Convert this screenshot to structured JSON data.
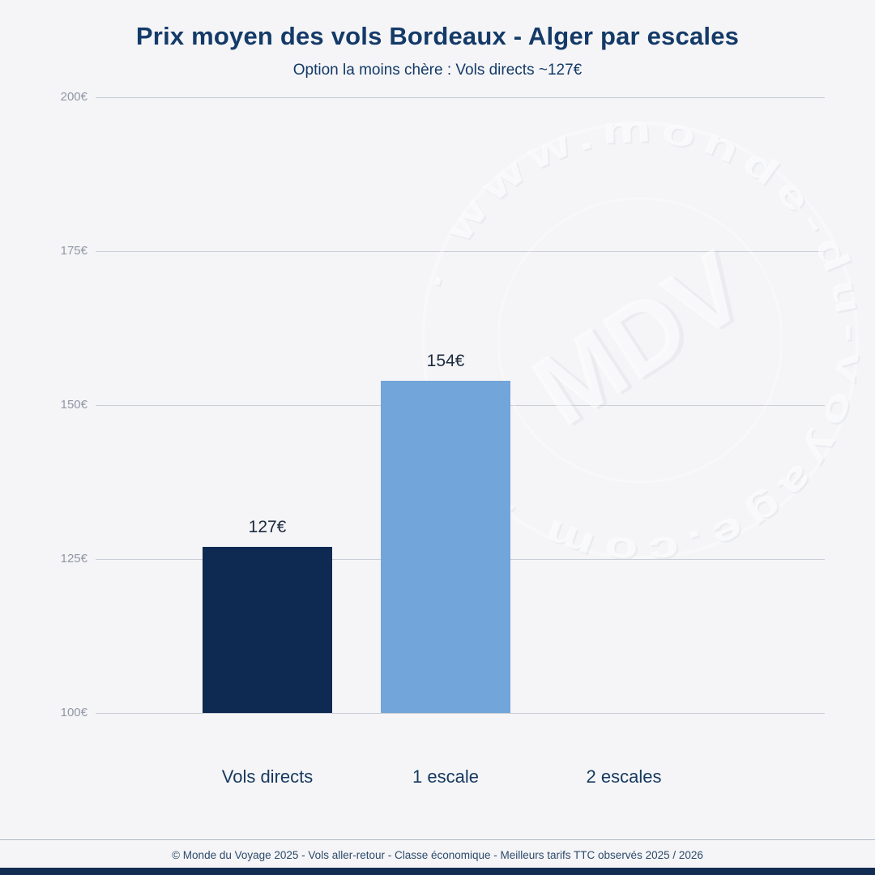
{
  "header": {
    "title": "Prix moyen des vols Bordeaux - Alger par escales",
    "subtitle": "Option la moins chère : Vols directs ~127€"
  },
  "chart_data": {
    "type": "bar",
    "title": "Prix moyen des vols Bordeaux - Alger par escales",
    "subtitle": "Option la moins chère : Vols directs ~127€",
    "categories": [
      "Vols directs",
      "1 escale",
      "2 escales"
    ],
    "values": [
      127,
      154,
      null
    ],
    "value_labels": [
      "127€",
      "154€",
      ""
    ],
    "bar_colors": [
      "#0e2a52",
      "#72a5d9",
      "#72a5d9"
    ],
    "xlabel": "",
    "ylabel": "",
    "ylim": [
      100,
      200
    ],
    "yticks": [
      100,
      125,
      150,
      175,
      200
    ],
    "ytick_labels": [
      "100€",
      "125€",
      "150€",
      "175€",
      "200€"
    ],
    "grid": true,
    "legend": false,
    "currency": "€"
  },
  "watermark": {
    "circle_text": "· www.monde-du-voyage.com ·",
    "center_text": "MDV"
  },
  "footer": {
    "text": "© Monde du Voyage 2025 - Vols aller-retour - Classe économique - Meilleurs tarifs TTC observés 2025 / 2026"
  },
  "colors": {
    "page_bg": "#f5f5f7",
    "title": "#143a68",
    "subtitle": "#143a68",
    "gridline": "#c9cdd6",
    "axis_label": "#9097a6",
    "value_label": "#1c2b3e",
    "category_label": "#16395f",
    "bar_dark": "#0e2a52",
    "bar_light": "#72a5d9",
    "watermark": "#ffffff",
    "footer_text": "#2d4a6b",
    "footer_rule": "#b0bac7",
    "footer_bar": "#122c52"
  }
}
